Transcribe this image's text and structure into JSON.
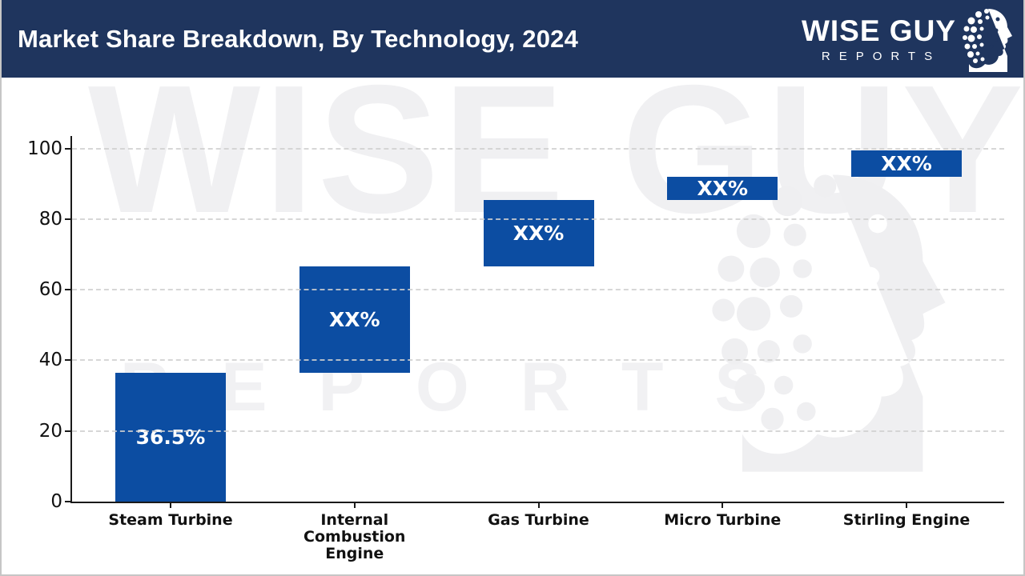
{
  "header": {
    "title": "Market Share Breakdown, By Technology, 2024",
    "bg_color": "#1F355E",
    "logo": {
      "line1": "WISE GUY",
      "line2": "REPORTS"
    }
  },
  "watermark": {
    "line1": "WISE GUY",
    "line2": "REPORTS"
  },
  "chart_data": {
    "type": "waterfall",
    "title": "Market Share Breakdown, By Technology, 2024",
    "categories": [
      "Steam Turbine",
      "Internal Combustion Engine",
      "Gas Turbine",
      "Micro Turbine",
      "Stirling Engine"
    ],
    "segments": [
      {
        "category": "Steam Turbine",
        "start": 0,
        "end": 36.5,
        "label": "36.5%"
      },
      {
        "category": "Internal Combustion Engine",
        "start": 36.5,
        "end": 66.5,
        "label": "XX%"
      },
      {
        "category": "Gas Turbine",
        "start": 66.5,
        "end": 85.5,
        "label": "XX%"
      },
      {
        "category": "Micro Turbine",
        "start": 85.5,
        "end": 92,
        "label": "XX%"
      },
      {
        "category": "Stirling Engine",
        "start": 92,
        "end": 99.5,
        "label": "XX%"
      }
    ],
    "yticks": [
      0,
      20,
      40,
      60,
      80,
      100
    ],
    "ylim": [
      0,
      103.5
    ],
    "grid": "horizontal-dashed",
    "legend": "none",
    "bar_color": "#0C4DA2",
    "bar_label_color": "#ffffff",
    "axis_color": "#1a1a1a"
  }
}
